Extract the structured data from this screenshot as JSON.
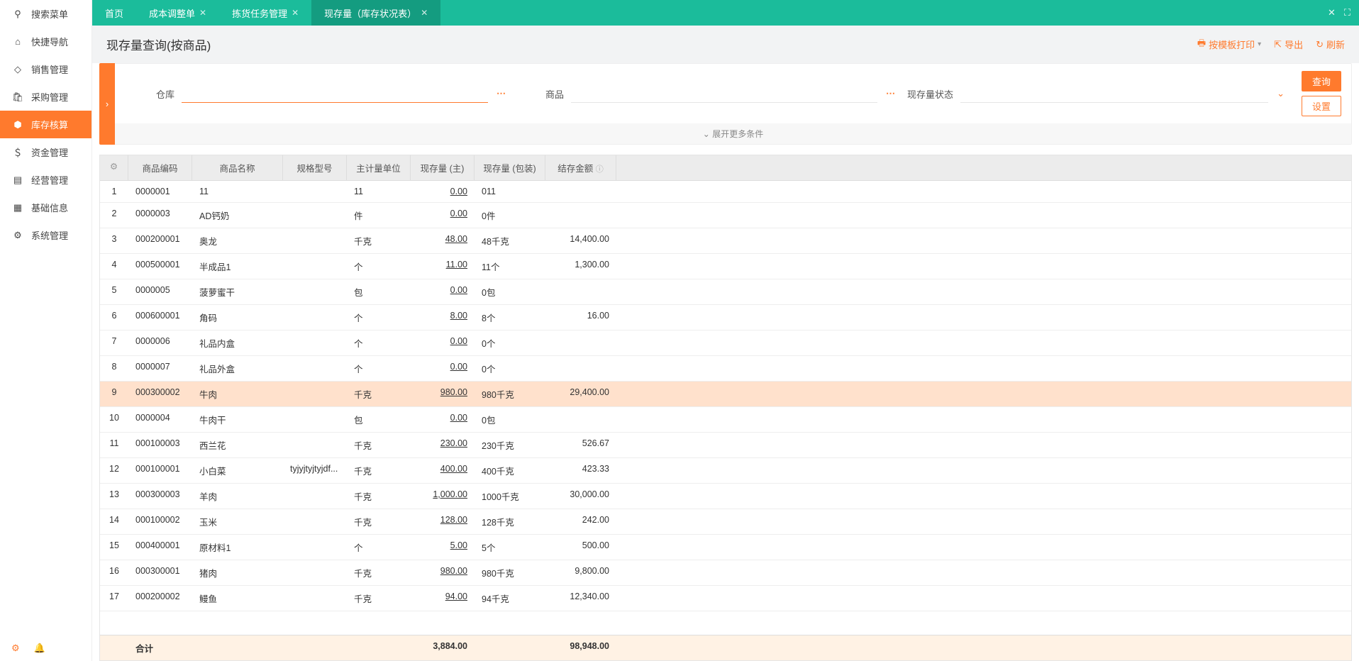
{
  "sidebar": {
    "items": [
      {
        "label": "搜索菜单",
        "icon": "search"
      },
      {
        "label": "快捷导航",
        "icon": "home"
      },
      {
        "label": "销售管理",
        "icon": "tag"
      },
      {
        "label": "采购管理",
        "icon": "bag"
      },
      {
        "label": "库存核算",
        "icon": "box",
        "active": true
      },
      {
        "label": "资金管理",
        "icon": "money"
      },
      {
        "label": "经营管理",
        "icon": "doc"
      },
      {
        "label": "基础信息",
        "icon": "grid"
      },
      {
        "label": "系统管理",
        "icon": "gear"
      }
    ]
  },
  "tabs": [
    {
      "label": "首页",
      "closable": false
    },
    {
      "label": "成本调整单",
      "closable": true
    },
    {
      "label": "拣货任务管理",
      "closable": true
    },
    {
      "label": "现存量（库存状况表）",
      "closable": true,
      "active": true
    }
  ],
  "page": {
    "title": "现存量查询(按商品)",
    "actions": {
      "print": "按模板打印",
      "export": "导出",
      "refresh": "刷新"
    }
  },
  "filter": {
    "warehouse_label": "仓库",
    "product_label": "商品",
    "status_label": "现存量状态",
    "expand": "展开更多条件",
    "query_btn": "查询",
    "setting_btn": "设置"
  },
  "table": {
    "columns": [
      "",
      "商品编码",
      "商品名称",
      "规格型号",
      "主计量单位",
      "现存量 (主)",
      "现存量 (包装)",
      "结存金额"
    ],
    "rows": [
      {
        "idx": "1",
        "code": "0000001",
        "name": "11",
        "spec": "",
        "unit": "11",
        "qty": "0.00",
        "pkg": "011",
        "amt": ""
      },
      {
        "idx": "2",
        "code": "0000003",
        "name": "AD钙奶",
        "spec": "",
        "unit": "件",
        "qty": "0.00",
        "pkg": "0件",
        "amt": ""
      },
      {
        "idx": "3",
        "code": "000200001",
        "name": "奥龙",
        "spec": "",
        "unit": "千克",
        "qty": "48.00",
        "pkg": "48千克",
        "amt": "14,400.00"
      },
      {
        "idx": "4",
        "code": "000500001",
        "name": "半成品1",
        "spec": "",
        "unit": "个",
        "qty": "11.00",
        "pkg": "11个",
        "amt": "1,300.00"
      },
      {
        "idx": "5",
        "code": "0000005",
        "name": "菠萝蜜干",
        "spec": "",
        "unit": "包",
        "qty": "0.00",
        "pkg": "0包",
        "amt": ""
      },
      {
        "idx": "6",
        "code": "000600001",
        "name": "角码",
        "spec": "",
        "unit": "个",
        "qty": "8.00",
        "pkg": "8个",
        "amt": "16.00"
      },
      {
        "idx": "7",
        "code": "0000006",
        "name": "礼品内盒",
        "spec": "",
        "unit": "个",
        "qty": "0.00",
        "pkg": "0个",
        "amt": ""
      },
      {
        "idx": "8",
        "code": "0000007",
        "name": "礼品外盒",
        "spec": "",
        "unit": "个",
        "qty": "0.00",
        "pkg": "0个",
        "amt": ""
      },
      {
        "idx": "9",
        "code": "000300002",
        "name": "牛肉",
        "spec": "",
        "unit": "千克",
        "qty": "980.00",
        "pkg": "980千克",
        "amt": "29,400.00",
        "highlight": true
      },
      {
        "idx": "10",
        "code": "0000004",
        "name": "牛肉干",
        "spec": "",
        "unit": "包",
        "qty": "0.00",
        "pkg": "0包",
        "amt": ""
      },
      {
        "idx": "11",
        "code": "000100003",
        "name": "西兰花",
        "spec": "",
        "unit": "千克",
        "qty": "230.00",
        "pkg": "230千克",
        "amt": "526.67"
      },
      {
        "idx": "12",
        "code": "000100001",
        "name": "小白菜",
        "spec": "tyjyjtyjtyjdf...",
        "unit": "千克",
        "qty": "400.00",
        "pkg": "400千克",
        "amt": "423.33"
      },
      {
        "idx": "13",
        "code": "000300003",
        "name": "羊肉",
        "spec": "",
        "unit": "千克",
        "qty": "1,000.00",
        "pkg": "1000千克",
        "amt": "30,000.00"
      },
      {
        "idx": "14",
        "code": "000100002",
        "name": "玉米",
        "spec": "",
        "unit": "千克",
        "qty": "128.00",
        "pkg": "128千克",
        "amt": "242.00"
      },
      {
        "idx": "15",
        "code": "000400001",
        "name": "原材料1",
        "spec": "",
        "unit": "个",
        "qty": "5.00",
        "pkg": "5个",
        "amt": "500.00"
      },
      {
        "idx": "16",
        "code": "000300001",
        "name": "猪肉",
        "spec": "",
        "unit": "千克",
        "qty": "980.00",
        "pkg": "980千克",
        "amt": "9,800.00"
      },
      {
        "idx": "17",
        "code": "000200002",
        "name": "鳗鱼",
        "spec": "",
        "unit": "千克",
        "qty": "94.00",
        "pkg": "94千克",
        "amt": "12,340.00"
      }
    ],
    "footer": {
      "label": "合计",
      "qty": "3,884.00",
      "amt": "98,948.00"
    }
  },
  "icons": {
    "search": "⚲",
    "home": "⌂",
    "tag": "◇",
    "bag": "🛍",
    "box": "⬢",
    "money": "＄",
    "doc": "▤",
    "grid": "▦",
    "gear": "⚙"
  },
  "colors": {
    "accent": "#ff7a2d",
    "tabbar": "#1bbc9b",
    "tab_active": "#149c80",
    "row_highlight": "#ffe1cc",
    "footer_bg": "#fff2e4"
  }
}
